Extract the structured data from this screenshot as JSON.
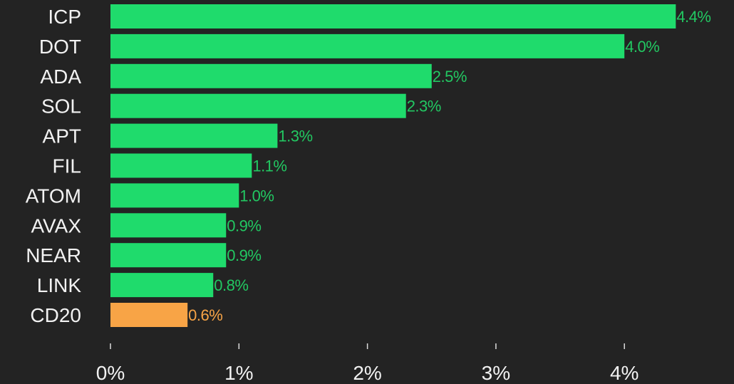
{
  "chart_data": {
    "type": "bar",
    "orientation": "horizontal",
    "title": "",
    "xlabel": "",
    "ylabel": "",
    "categories": [
      "ICP",
      "DOT",
      "ADA",
      "SOL",
      "APT",
      "FIL",
      "ATOM",
      "AVAX",
      "NEAR",
      "LINK",
      "CD20"
    ],
    "values": [
      4.4,
      4.0,
      2.5,
      2.3,
      1.3,
      1.1,
      1.0,
      0.9,
      0.9,
      0.8,
      0.6
    ],
    "value_labels": [
      "4.4%",
      "4.0%",
      "2.5%",
      "2.3%",
      "1.3%",
      "1.1%",
      "1.0%",
      "0.9%",
      "0.9%",
      "0.8%",
      "0.6%"
    ],
    "highlight_category": "CD20",
    "xlim": [
      0,
      4.6
    ],
    "xticks": [
      0,
      1,
      2,
      3,
      4
    ],
    "xtick_labels": [
      "0%",
      "1%",
      "2%",
      "3%",
      "4%"
    ],
    "grid": false,
    "colors": {
      "bar": "#1fdb6c",
      "highlight": "#f8a446",
      "background": "#232323",
      "text": "#f2f2f2"
    }
  }
}
